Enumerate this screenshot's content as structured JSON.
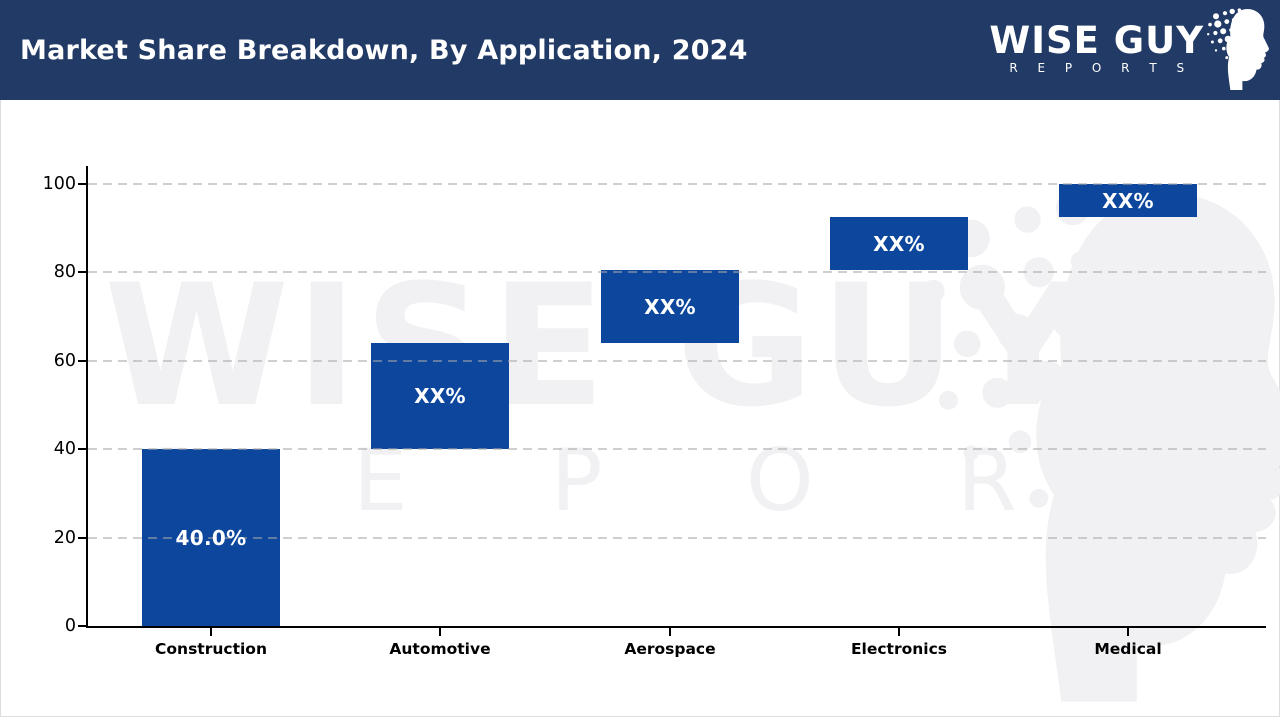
{
  "header": {
    "title": "Market Share Breakdown, By Application, 2024",
    "logo": {
      "line1": "WISE GUY",
      "line2": "R E P O R T S"
    }
  },
  "watermark": {
    "line1": "WISE GUY",
    "line2": "R E P O R T S"
  },
  "chart_data": {
    "type": "bar",
    "subtype": "waterfall",
    "title": "Market Share Breakdown, By Application, 2024",
    "xlabel": "",
    "ylabel": "",
    "ylim": [
      0,
      100
    ],
    "yticks": [
      0,
      20,
      40,
      60,
      80,
      100
    ],
    "grid": "horizontal dashed",
    "legend": "none",
    "bar_color": "#0C479D",
    "categories": [
      "Construction",
      "Automotive",
      "Aerospace",
      "Electronics",
      "Medical"
    ],
    "segments": [
      {
        "category": "Construction",
        "start": 0,
        "end": 40,
        "label": "40.0%"
      },
      {
        "category": "Automotive",
        "start": 40,
        "end": 64,
        "label": "XX%"
      },
      {
        "category": "Aerospace",
        "start": 64,
        "end": 80.5,
        "label": "XX%"
      },
      {
        "category": "Electronics",
        "start": 80.5,
        "end": 92.5,
        "label": "XX%"
      },
      {
        "category": "Medical",
        "start": 92.5,
        "end": 100,
        "label": "XX%"
      }
    ]
  }
}
